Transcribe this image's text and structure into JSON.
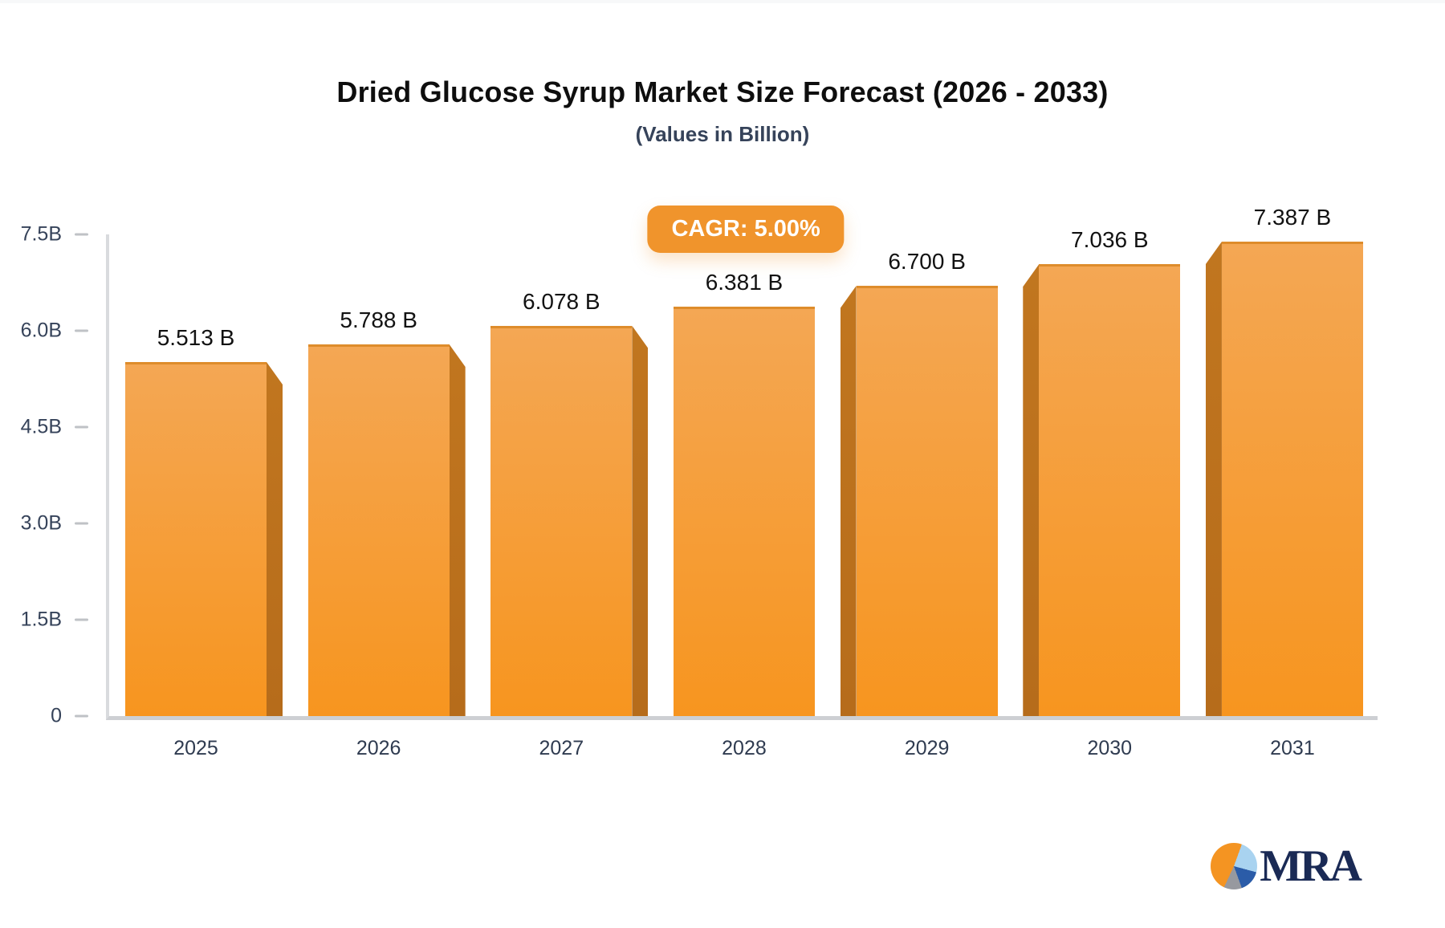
{
  "title": "Dried Glucose Syrup Market Size Forecast (2026 - 2033)",
  "subtitle": "(Values in Billion)",
  "badge": {
    "label": "CAGR: 5.00%",
    "bg": "#F0942C"
  },
  "logo": {
    "text": "MRA",
    "pie_colors": [
      "#F49422",
      "#A9D3F0",
      "#2B5CA8",
      "#97999F"
    ]
  },
  "colors": {
    "bar_face_top": "#F4A754",
    "bar_face_bottom": "#F7951F",
    "bar_side": "#BA701D",
    "axis_line": "#D9DBDE",
    "tick_text": "#36435A",
    "value_text": "#121212"
  },
  "chart_data": {
    "type": "bar",
    "title": "Dried Glucose Syrup Market Size Forecast (2026 - 2033)",
    "subtitle": "(Values in Billion)",
    "categories": [
      "2025",
      "2026",
      "2027",
      "2028",
      "2029",
      "2030",
      "2031"
    ],
    "values": [
      5.513,
      5.788,
      6.078,
      6.381,
      6.7,
      7.036,
      7.387
    ],
    "value_labels": [
      "5.513 B",
      "5.788 B",
      "6.078 B",
      "6.381 B",
      "6.700 B",
      "7.036 B",
      "7.387 B"
    ],
    "xlabel": "",
    "ylabel": "",
    "ylim": [
      0,
      7.5
    ],
    "yticks": [
      {
        "value": 0.0,
        "label": "0"
      },
      {
        "value": 1.5,
        "label": "1.5B"
      },
      {
        "value": 3.0,
        "label": "3.0B"
      },
      {
        "value": 4.5,
        "label": "4.5B"
      },
      {
        "value": 6.0,
        "label": "6.0B"
      },
      {
        "value": 7.5,
        "label": "7.5B"
      }
    ],
    "grid": false,
    "legend": false,
    "annotation": "CAGR: 5.00%"
  }
}
